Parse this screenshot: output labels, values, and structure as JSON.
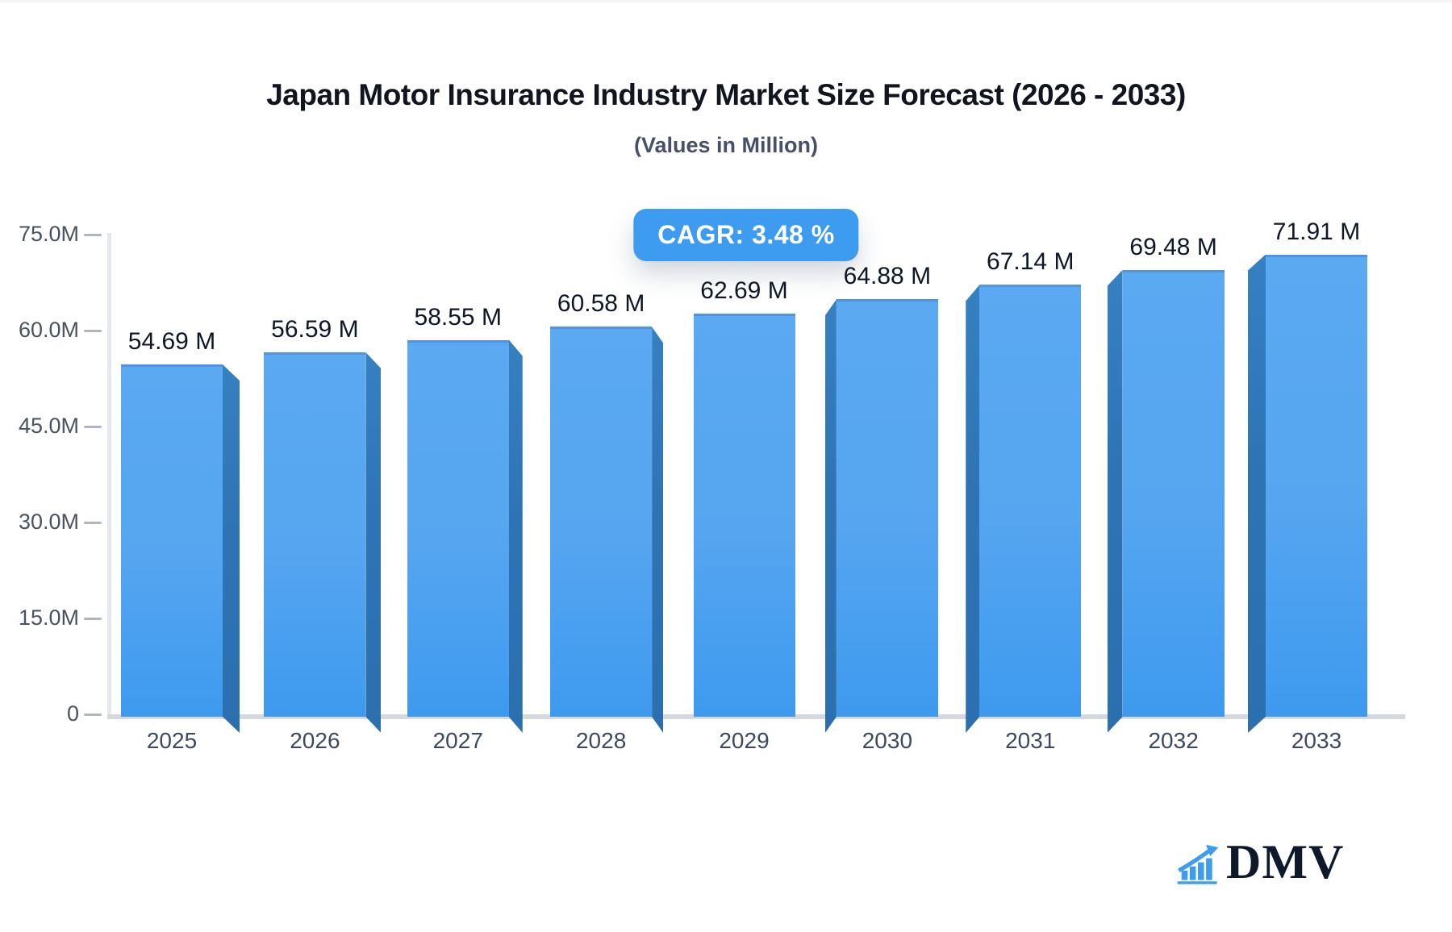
{
  "header": {
    "title": "Japan Motor Insurance Industry Market Size Forecast (2026 - 2033)",
    "subtitle": "(Values in Million)",
    "cagr_badge": "CAGR: 3.48 %"
  },
  "chart_data": {
    "type": "bar",
    "title": "Japan Motor Insurance Industry Market Size Forecast (2026 - 2033)",
    "subtitle": "(Values in Million)",
    "unit": "Million",
    "cagr_percent": 3.48,
    "categories": [
      "2025",
      "2026",
      "2027",
      "2028",
      "2029",
      "2030",
      "2031",
      "2032",
      "2033"
    ],
    "values": [
      54.69,
      56.59,
      58.55,
      60.58,
      62.69,
      64.88,
      67.14,
      69.48,
      71.91
    ],
    "value_labels": [
      "54.69 M",
      "56.59 M",
      "58.55 M",
      "60.58 M",
      "62.69 M",
      "64.88 M",
      "67.14 M",
      "69.48 M",
      "71.91 M"
    ],
    "xlabel": "",
    "ylabel": "",
    "ylim": [
      0,
      75
    ],
    "yticks": [
      {
        "value": 0,
        "label": "0"
      },
      {
        "value": 15,
        "label": "15.0M"
      },
      {
        "value": 30,
        "label": "30.0M"
      },
      {
        "value": 45,
        "label": "45.0M"
      },
      {
        "value": 60,
        "label": "60.0M"
      },
      {
        "value": 75,
        "label": "75.0M"
      }
    ],
    "grid": false,
    "legend": false,
    "bar_style": "3d-extruded"
  },
  "branding": {
    "logo_text": "DMV",
    "logo_icon": "bar-chart-growth-icon"
  },
  "colors": {
    "accent_blue": "#3d9bf0",
    "bar_face": "#55a5f0",
    "bar_side": "#2e74b5",
    "axis_gray": "#d5d8dd",
    "text_dark": "#10151f",
    "text_slate": "#3d4a5e"
  }
}
